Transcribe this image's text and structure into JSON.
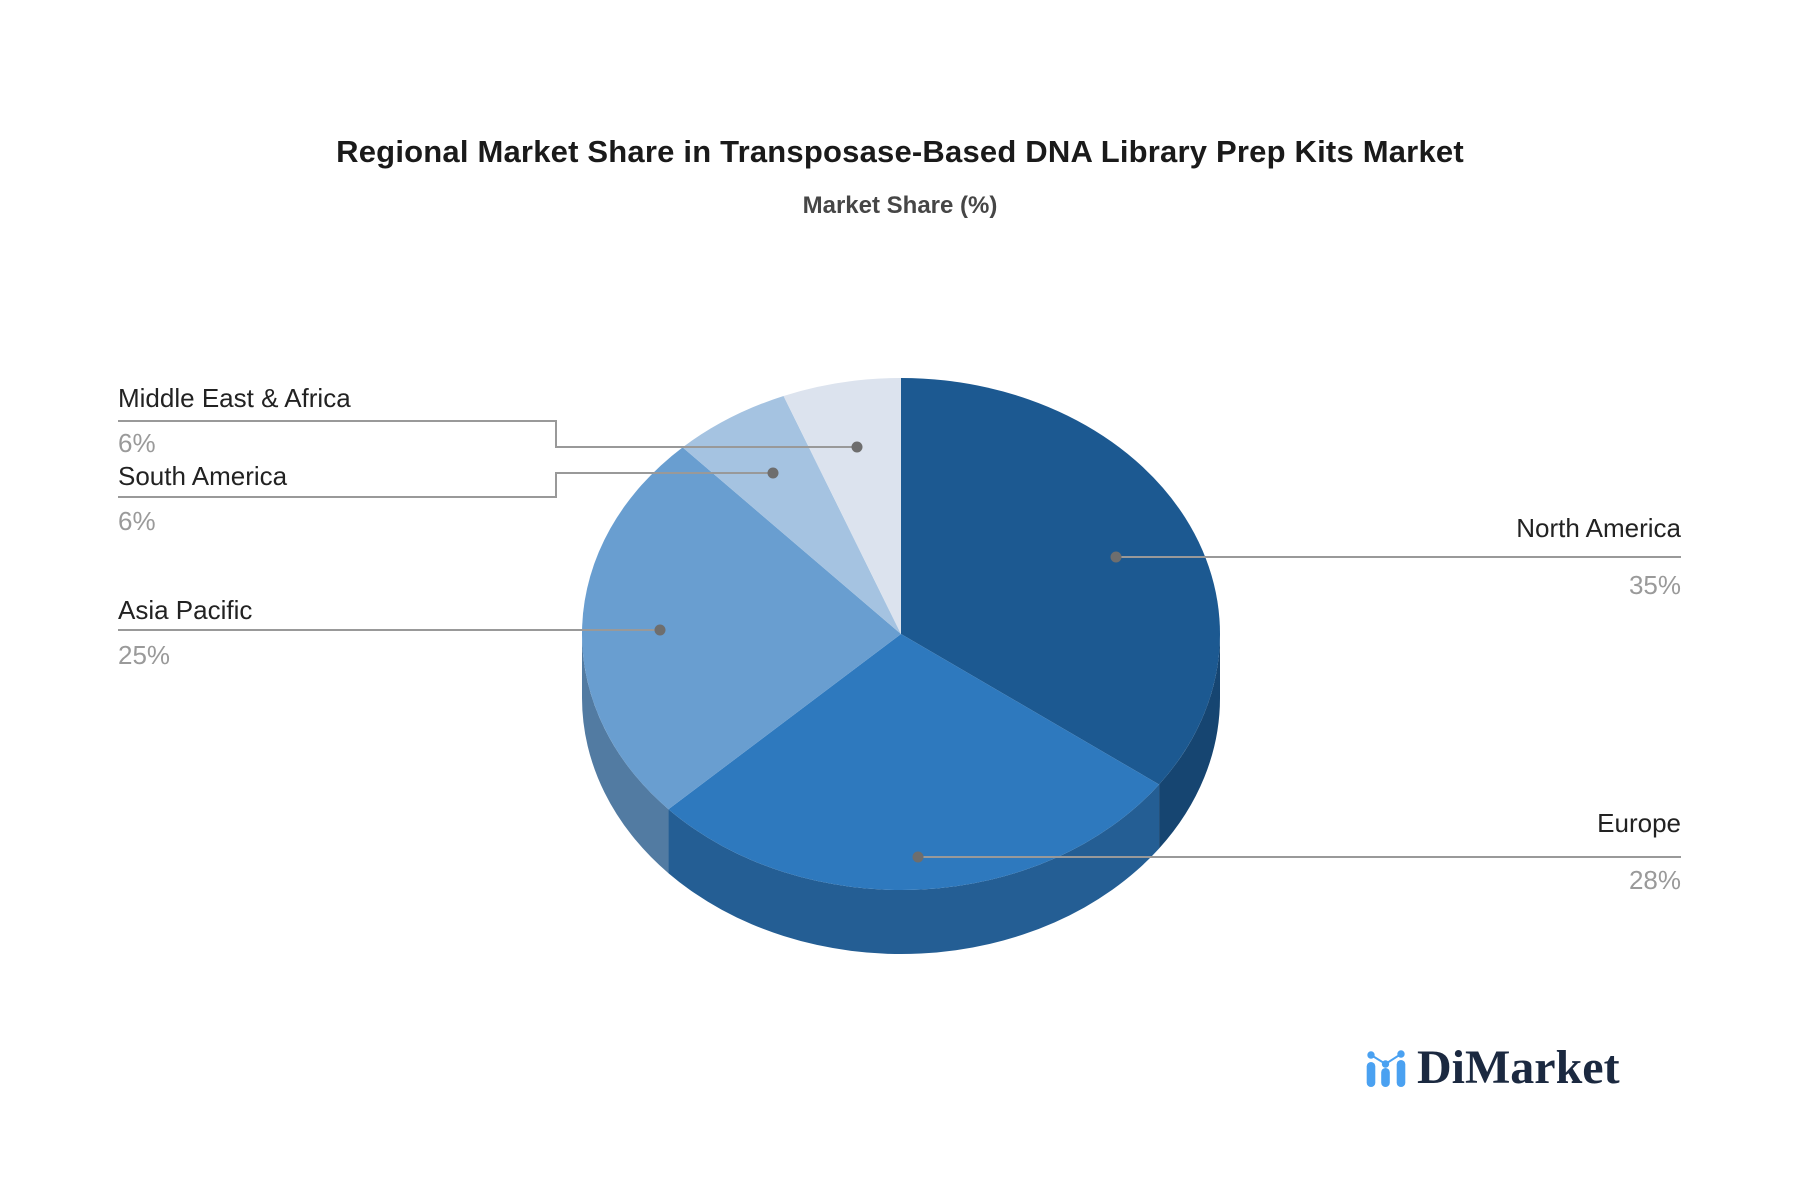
{
  "chart_data": {
    "type": "pie",
    "title": "Regional Market Share in Transposase-Based DNA Library Prep Kits Market",
    "subtitle": "Market Share (%)",
    "unit": "%",
    "legend_position": "callout-labels",
    "slices": [
      {
        "label": "North America",
        "value": 35,
        "display_value": "35%",
        "color": "#1C5991"
      },
      {
        "label": "Europe",
        "value": 28,
        "display_value": "28%",
        "color": "#2E79BE"
      },
      {
        "label": "Asia Pacific",
        "value": 25,
        "display_value": "25%",
        "color": "#699ED0"
      },
      {
        "label": "South America",
        "value": 6,
        "display_value": "6%",
        "color": "#A5C3E1"
      },
      {
        "label": "Middle East & Africa",
        "value": 6,
        "display_value": "6%",
        "color": "#DCE3EE"
      }
    ]
  },
  "colors": {
    "leader_line": "#999999",
    "leader_dot": "#6E6E6E",
    "label_text": "#222222",
    "value_text": "#9A9A9A",
    "title_text": "#1A1A1A",
    "subtitle_text": "#464646",
    "logo_blue": "#4AA1F1",
    "logo_navy": "#1B2940"
  },
  "branding": {
    "logo_text": "DiMarket",
    "logo_icon": "bar-chart-logo-icon"
  }
}
